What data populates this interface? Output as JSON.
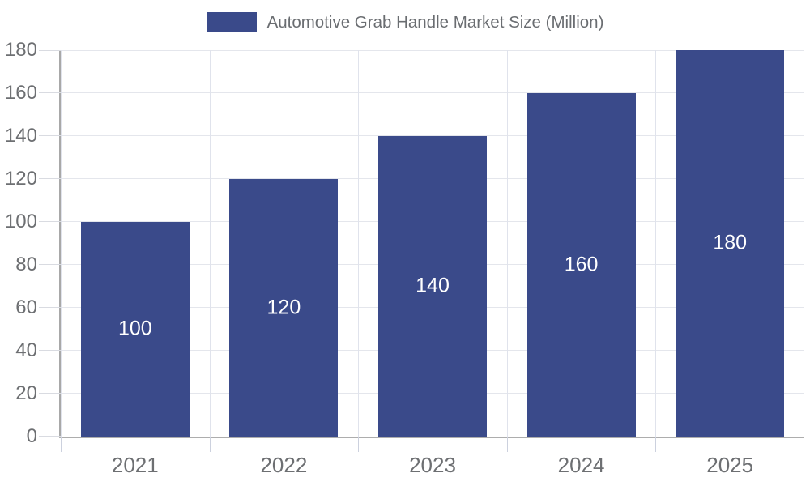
{
  "legend": {
    "label": "Automotive Grab Handle Market Size (Million)"
  },
  "chart_data": {
    "type": "bar",
    "title": "",
    "xlabel": "",
    "ylabel": "",
    "categories": [
      "2021",
      "2022",
      "2023",
      "2024",
      "2025"
    ],
    "series": [
      {
        "name": "Automotive Grab Handle Market Size (Million)",
        "values": [
          100,
          120,
          140,
          160,
          180
        ]
      }
    ],
    "value_labels": [
      "100",
      "120",
      "140",
      "160",
      "180"
    ],
    "yticks": [
      0,
      20,
      40,
      60,
      80,
      100,
      120,
      140,
      160,
      180
    ],
    "ylim": [
      0,
      180
    ],
    "grid": "horizontal and vertical gridlines on",
    "legend_position": "top center"
  },
  "colors": {
    "bar": "#3a4a8a",
    "value_label": "#ffffff",
    "axis_text": "#6d6f72",
    "legend_text": "#6a6d71",
    "gridline": "#e4e6ec",
    "axis_line": "#a8a8a8"
  }
}
